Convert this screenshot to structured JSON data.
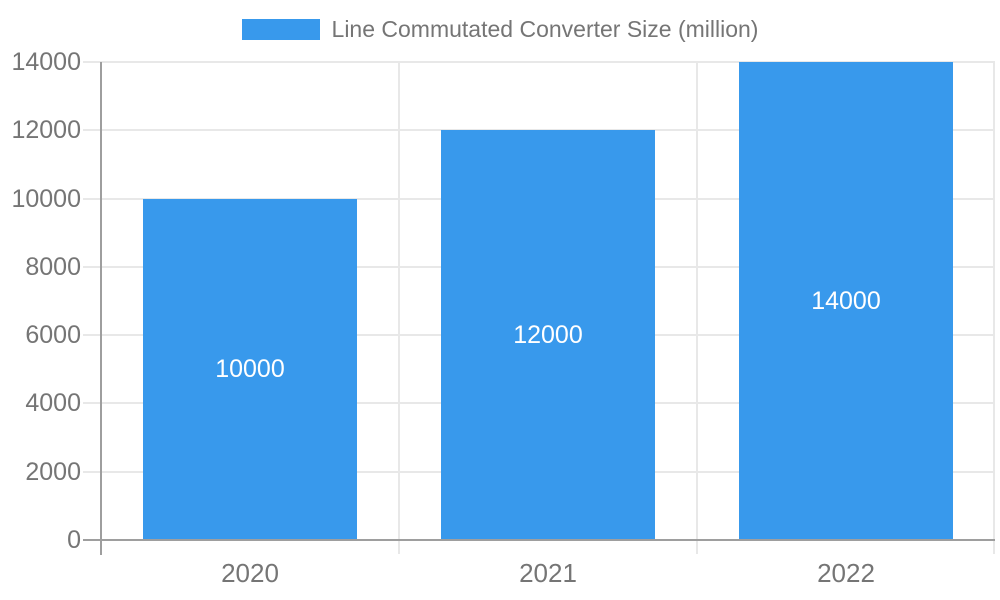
{
  "chart_data": {
    "type": "bar",
    "title": "Line Commutated Converter Size (million)",
    "categories": [
      "2020",
      "2021",
      "2022"
    ],
    "values": [
      10000,
      12000,
      14000
    ],
    "bar_value_labels": [
      "10000",
      "12000",
      "14000"
    ],
    "xlabel": "",
    "ylabel": "",
    "ylim": [
      0,
      14000
    ],
    "yticks": [
      0,
      2000,
      4000,
      6000,
      8000,
      10000,
      12000,
      14000
    ],
    "grid": true,
    "legend_position": "top-center",
    "colors": {
      "bar": "#3899EC",
      "axis_line": "#9E9E9E",
      "gridline": "#E8E8E8",
      "axis_text": "#757575",
      "bar_label_text": "#FFFFFF",
      "background": "#FFFFFF"
    }
  },
  "legend": {
    "swatch_color": "#3899EC",
    "label": "Line Commutated Converter Size (million)"
  }
}
